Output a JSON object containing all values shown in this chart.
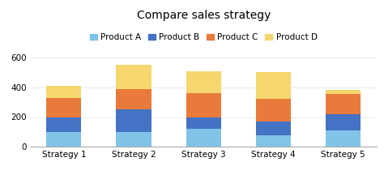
{
  "title": "Compare sales strategy",
  "categories": [
    "Strategy 1",
    "Strategy 2",
    "Strategy 3",
    "Strategy 4",
    "Strategy 5"
  ],
  "products": [
    "Product A",
    "Product B",
    "Product C",
    "Product D"
  ],
  "values": {
    "Product A": [
      100,
      100,
      120,
      80,
      110
    ],
    "Product B": [
      100,
      150,
      80,
      90,
      110
    ],
    "Product C": [
      130,
      140,
      160,
      155,
      135
    ],
    "Product D": [
      80,
      160,
      150,
      180,
      25
    ]
  },
  "colors": {
    "Product A": "#82C4E8",
    "Product B": "#4472C4",
    "Product C": "#E87A3C",
    "Product D": "#F5D76E"
  },
  "ylim": [
    0,
    650
  ],
  "yticks": [
    0,
    200,
    400,
    600
  ],
  "background_color": "#FFFFFF",
  "legend_fontsize": 7.5,
  "title_fontsize": 10,
  "tick_fontsize": 7.5,
  "bar_width": 0.5
}
